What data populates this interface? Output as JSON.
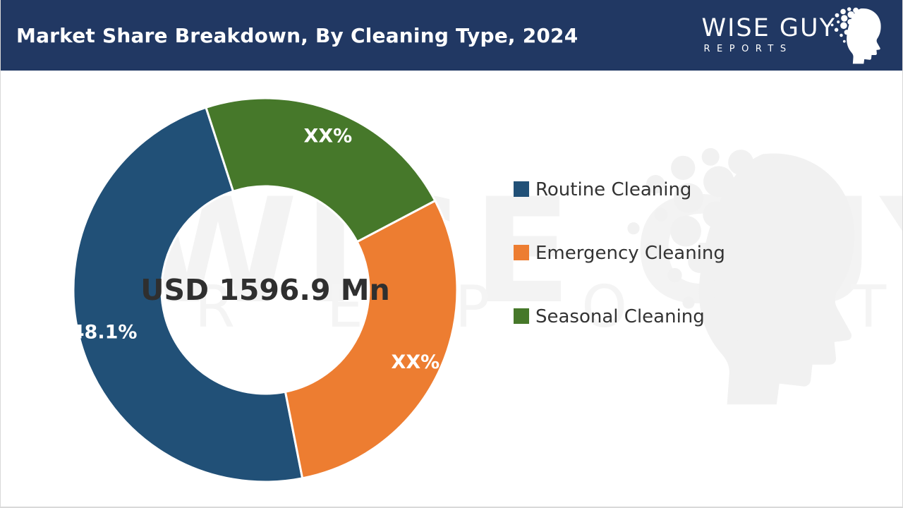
{
  "header": {
    "title": "Market Share Breakdown, By Cleaning Type, 2024",
    "logo": {
      "line1": "WISE GUY",
      "line2": "REPORTS"
    }
  },
  "chart_data": {
    "type": "pie",
    "subtype": "donut",
    "title": "Market Share Breakdown, By Cleaning Type, 2024",
    "center_label": "USD 1596.9 Mn",
    "start_angle_deg": 108,
    "direction": "counterclockwise",
    "inner_radius_ratio": 0.54,
    "legend_position": "right",
    "segments": [
      {
        "name": "Routine Cleaning",
        "label": "48.1%",
        "value_pct": 48.1,
        "color": "#215077",
        "label_shown": true
      },
      {
        "name": "Emergency Cleaning",
        "label": "XX%",
        "value_pct": 29.6,
        "color": "#ED7D31",
        "label_shown": false
      },
      {
        "name": "Seasonal Cleaning",
        "label": "XX%",
        "value_pct": 22.3,
        "color": "#46782A",
        "label_shown": false
      }
    ]
  },
  "legend": {
    "items": [
      {
        "label": "Routine Cleaning",
        "color": "#215077"
      },
      {
        "label": "Emergency Cleaning",
        "color": "#ED7D31"
      },
      {
        "label": "Seasonal Cleaning",
        "color": "#46782A"
      }
    ]
  },
  "watermark": {
    "line1": "WISE GUY",
    "line2": "R E P O R T S"
  },
  "colors": {
    "header_bg": "#213863",
    "frame_border": "#d9d9d9",
    "legend_text": "#333333",
    "center_text": "#2f2f2f"
  }
}
